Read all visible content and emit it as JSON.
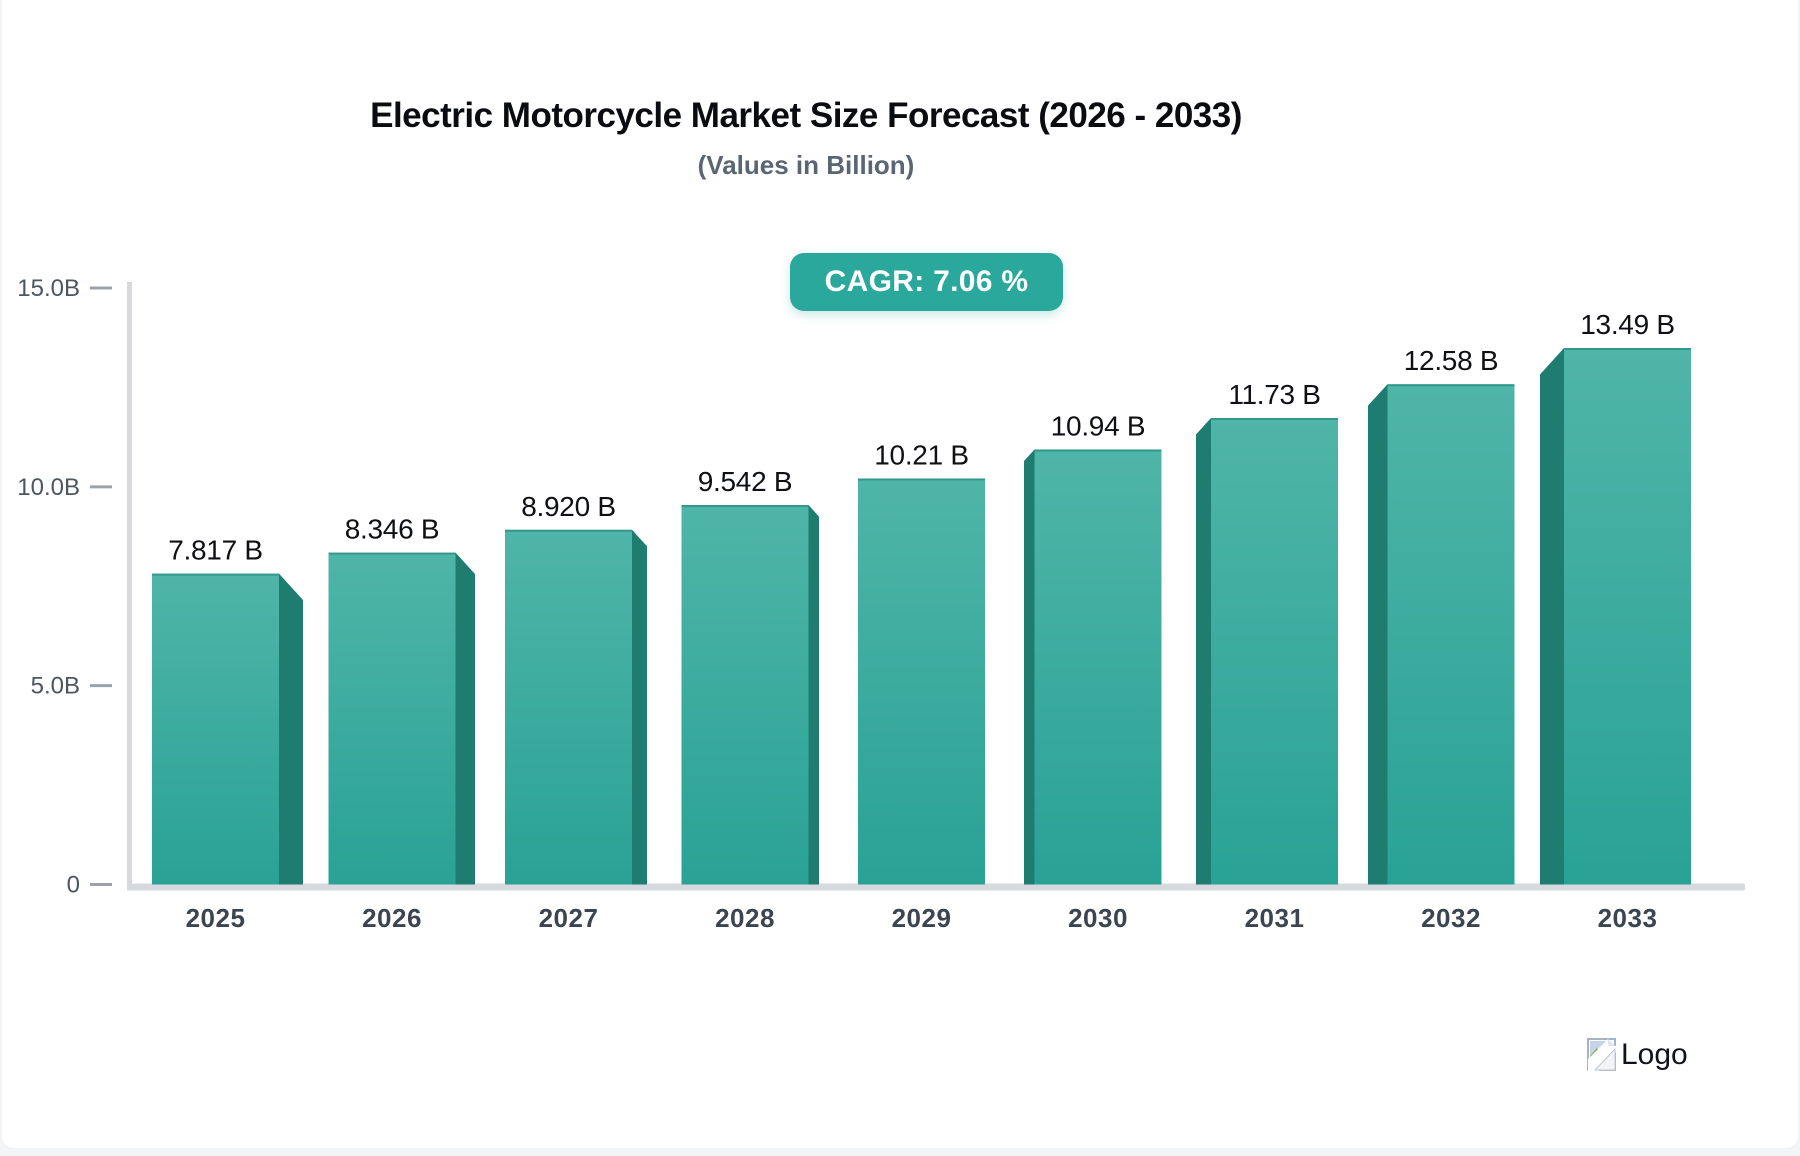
{
  "page": {
    "background": "#f2f4f6",
    "card_background": "#ffffff"
  },
  "header": {
    "title": "Electric Motorcycle Market Size Forecast (2026 - 2033)",
    "subtitle": "(Values in Billion)"
  },
  "badge": {
    "label": "CAGR: 7.06 %",
    "background": "#2aa89b",
    "text_color": "#ffffff"
  },
  "chart_data": {
    "type": "bar",
    "title": "Electric Motorcycle Market Size Forecast (2026 - 2033)",
    "subtitle": "(Values in Billion)",
    "xlabel": "",
    "ylabel": "",
    "categories": [
      "2025",
      "2026",
      "2027",
      "2028",
      "2029",
      "2030",
      "2031",
      "2032",
      "2033"
    ],
    "values": [
      7.817,
      8.346,
      8.92,
      9.542,
      10.21,
      10.94,
      11.73,
      12.58,
      13.49
    ],
    "value_labels": [
      "7.817 B",
      "8.346 B",
      "8.920 B",
      "9.542 B",
      "10.21 B",
      "10.94 B",
      "11.73 B",
      "12.58 B",
      "13.49 B"
    ],
    "ylim": [
      0,
      15
    ],
    "yticks": [
      {
        "value": 0,
        "label": "0"
      },
      {
        "value": 5,
        "label": "5.0B"
      },
      {
        "value": 10,
        "label": "10.0B"
      },
      {
        "value": 15,
        "label": "15.0B"
      }
    ],
    "grid": false,
    "legend": "none",
    "style": "3d-perspective-toward-center",
    "colors": {
      "face_top": "#4fb5a8",
      "face_bottom": "#29a295",
      "side": "#1e7c71",
      "top_edge": "#2d9488",
      "axis": "#d7d9de",
      "tick": "#9aa2ab",
      "tick_label": "#4b5661",
      "category_label": "#3b4551",
      "value_label": "#0e1014"
    }
  },
  "logo": {
    "alt_text": "Logo",
    "icon": "broken-image-icon"
  }
}
